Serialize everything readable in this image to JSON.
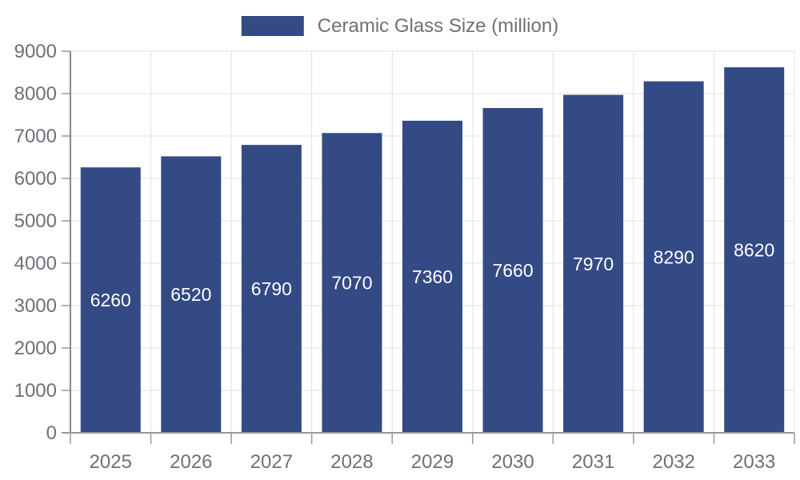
{
  "legend": {
    "label": "Ceramic Glass Size (million)"
  },
  "chart_data": {
    "type": "bar",
    "title": "Ceramic Glass Size (million)",
    "categories": [
      "2025",
      "2026",
      "2027",
      "2028",
      "2029",
      "2030",
      "2031",
      "2032",
      "2033"
    ],
    "values": [
      6260,
      6520,
      6790,
      7070,
      7360,
      7660,
      7970,
      8290,
      8620
    ],
    "xlabel": "",
    "ylabel": "",
    "ylim": [
      0,
      9000
    ],
    "ytick_step": 1000,
    "yticks": [
      0,
      1000,
      2000,
      3000,
      4000,
      5000,
      6000,
      7000,
      8000,
      9000
    ],
    "grid": true,
    "legend_position": "top-center",
    "value_labels": "inside-middle",
    "colors": {
      "bar": "#344a85",
      "value_label": "#ffffff",
      "axis_text": "#6e7079",
      "grid_line": "#e0e0e0",
      "axis_line": "#999999",
      "tick_line": "#999999",
      "y_axis_line": "#888888"
    }
  }
}
